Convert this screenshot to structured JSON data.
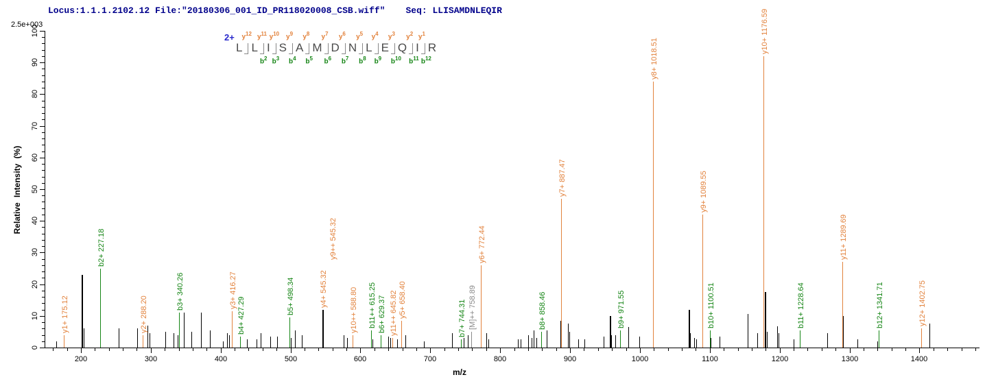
{
  "header": {
    "locus_file_line": "Locus:1.1.1.2102.12 File:\"20180306_001_ID_PR118020008_CSB.wiff\"",
    "seq_line": "Seq: LLISAMDNLEQIR",
    "max_intensity": "2.5e+003"
  },
  "chart_data": {
    "type": "bar",
    "title": "MS/MS fragmentation spectrum",
    "xlabel": "m/z",
    "ylabel": "Relative Intensity (%)",
    "xlim": [
      148,
      1486
    ],
    "ylim": [
      0,
      100
    ],
    "x_major_ticks": [
      200,
      300,
      400,
      500,
      600,
      700,
      800,
      900,
      1000,
      1100,
      1200,
      1300,
      1400
    ],
    "x_minor_step": 20,
    "y_major_ticks": [
      0,
      10,
      20,
      30,
      40,
      50,
      60,
      70,
      80,
      90,
      100
    ],
    "y_minor_step": 2,
    "grid": false,
    "legend": "none",
    "colors": {
      "y_ion": "#E2823C",
      "b_ion": "#158515",
      "precursor_ion": "#8a8a8a",
      "peak": "#000000",
      "header_text": "#00008B",
      "charge_text": "#2727CC"
    },
    "precursor": {
      "charge": "2+",
      "sequence": "LLISAMDNLEQIR",
      "y_ion_labels": [
        "y12",
        "y11",
        "y10",
        "y9",
        "y8",
        "y7",
        "y6",
        "y5",
        "y4",
        "y3",
        "y2",
        "y1"
      ],
      "b_ion_labels": [
        null,
        "b2",
        "b3",
        "b4",
        "b5",
        "b6",
        "b7",
        "b8",
        "b9",
        "b10",
        "b11",
        "b12"
      ]
    },
    "labeled_peaks": [
      {
        "label": "y1+ 175.12",
        "mz": 175.12,
        "intensity": 4,
        "ion": "y"
      },
      {
        "label": "b2+ 227.18",
        "mz": 227.18,
        "intensity": 25,
        "ion": "b"
      },
      {
        "label": "y2+ 288.20",
        "mz": 288.2,
        "intensity": 4,
        "ion": "y"
      },
      {
        "label": "b3+ 340.26",
        "mz": 340.26,
        "intensity": 11,
        "ion": "b"
      },
      {
        "label": "y3+ 416.27",
        "mz": 416.27,
        "intensity": 11.5,
        "ion": "y"
      },
      {
        "label": "b4+ 427.29",
        "mz": 427.29,
        "intensity": 3.5,
        "ion": "b"
      },
      {
        "label": "b5+ 498.34",
        "mz": 498.34,
        "intensity": 9.5,
        "ion": "b"
      },
      {
        "label": "y4+ 545.32",
        "mz": 545.32,
        "intensity": 12,
        "ion": "y",
        "peak_color": "#000000",
        "peak_width": 2
      },
      {
        "label": "y9++ 545.32",
        "mz": 545.32,
        "intensity": 27,
        "ion": "y",
        "dx": 14,
        "no_line": true
      },
      {
        "label": "y10++ 588.80",
        "mz": 588.8,
        "intensity": 4,
        "ion": "y"
      },
      {
        "label": "b11++ 615.25",
        "mz": 615.25,
        "intensity": 5.5,
        "ion": "b"
      },
      {
        "label": "b6+ 629.37",
        "mz": 629.37,
        "intensity": 4,
        "ion": "b"
      },
      {
        "label": "y11++ 645.82",
        "mz": 645.82,
        "intensity": 3,
        "ion": "y"
      },
      {
        "label": "y5+ 658.40",
        "mz": 658.4,
        "intensity": 8.5,
        "ion": "y"
      },
      {
        "label": "b7+ 744.31",
        "mz": 744.31,
        "intensity": 2.5,
        "ion": "b"
      },
      {
        "label": "[M]++ 758.89",
        "mz": 758.89,
        "intensity": 5,
        "ion": "M"
      },
      {
        "label": "y6+ 772.44",
        "mz": 772.44,
        "intensity": 26,
        "ion": "y"
      },
      {
        "label": "b8+ 858.46",
        "mz": 858.46,
        "intensity": 5,
        "ion": "b"
      },
      {
        "label": "y7+ 887.47",
        "mz": 887.47,
        "intensity": 47,
        "ion": "y"
      },
      {
        "label": "b9+ 971.55",
        "mz": 971.55,
        "intensity": 5.5,
        "ion": "b"
      },
      {
        "label": "y8+ 1018.51",
        "mz": 1018.51,
        "intensity": 84,
        "ion": "y"
      },
      {
        "label": "y9+ 1089.55",
        "mz": 1089.55,
        "intensity": 42,
        "ion": "y"
      },
      {
        "label": "b10+ 1100.51",
        "mz": 1100.51,
        "intensity": 5.5,
        "ion": "b"
      },
      {
        "label": "y10+ 1176.59",
        "mz": 1176.59,
        "intensity": 92,
        "ion": "y"
      },
      {
        "label": "b11+ 1228.64",
        "mz": 1228.64,
        "intensity": 5.5,
        "ion": "b"
      },
      {
        "label": "y11+ 1289.69",
        "mz": 1289.69,
        "intensity": 27,
        "ion": "y"
      },
      {
        "label": "b12+ 1341.71",
        "mz": 1341.71,
        "intensity": 5.5,
        "ion": "b"
      },
      {
        "label": "y12+ 1402.75",
        "mz": 1402.75,
        "intensity": 6,
        "ion": "y"
      }
    ],
    "unlabeled_peaks": [
      [
        165,
        2
      ],
      [
        201,
        23,
        2
      ],
      [
        204,
        6
      ],
      [
        254,
        6
      ],
      [
        281,
        6
      ],
      [
        295,
        7
      ],
      [
        298,
        4.5
      ],
      [
        321,
        5
      ],
      [
        333,
        4.5
      ],
      [
        338,
        4
      ],
      [
        347,
        11
      ],
      [
        358,
        5
      ],
      [
        372,
        11
      ],
      [
        385,
        5.5
      ],
      [
        403,
        2
      ],
      [
        409,
        4.5
      ],
      [
        412,
        4
      ],
      [
        438,
        2.5
      ],
      [
        451,
        2.5
      ],
      [
        457,
        4.5
      ],
      [
        471,
        3.5
      ],
      [
        481,
        3.5
      ],
      [
        500,
        3
      ],
      [
        506,
        5.5
      ],
      [
        516,
        4
      ],
      [
        576,
        4
      ],
      [
        581,
        3
      ],
      [
        617,
        2.5
      ],
      [
        640,
        3.5
      ],
      [
        643,
        3
      ],
      [
        653,
        2.5
      ],
      [
        664,
        4
      ],
      [
        691,
        2
      ],
      [
        731,
        4.5
      ],
      [
        748,
        3
      ],
      [
        754,
        4
      ],
      [
        780,
        4.5
      ],
      [
        783,
        2.5
      ],
      [
        825,
        2.5
      ],
      [
        829,
        2.5
      ],
      [
        840,
        4
      ],
      [
        845,
        3
      ],
      [
        848,
        5.5
      ],
      [
        852,
        3
      ],
      [
        867,
        5.5
      ],
      [
        886,
        8.5,
        2
      ],
      [
        897,
        7.5
      ],
      [
        899,
        5
      ],
      [
        912,
        2.5
      ],
      [
        921,
        2.5
      ],
      [
        948,
        3.5
      ],
      [
        957,
        10,
        2
      ],
      [
        959,
        4
      ],
      [
        965,
        4
      ],
      [
        983,
        6.5
      ],
      [
        999,
        3.5
      ],
      [
        1070,
        12,
        2
      ],
      [
        1072,
        4.5
      ],
      [
        1078,
        3
      ],
      [
        1081,
        2.5
      ],
      [
        1101,
        3
      ],
      [
        1114,
        3.5
      ],
      [
        1154,
        10.5
      ],
      [
        1168,
        4.5
      ],
      [
        1179,
        17.5,
        2
      ],
      [
        1182,
        5
      ],
      [
        1196,
        6.7
      ],
      [
        1198,
        4.5
      ],
      [
        1220,
        2.5
      ],
      [
        1268,
        4.5
      ],
      [
        1290,
        10,
        2
      ],
      [
        1311,
        2.5
      ],
      [
        1340,
        2
      ],
      [
        1414,
        7.5
      ]
    ]
  }
}
